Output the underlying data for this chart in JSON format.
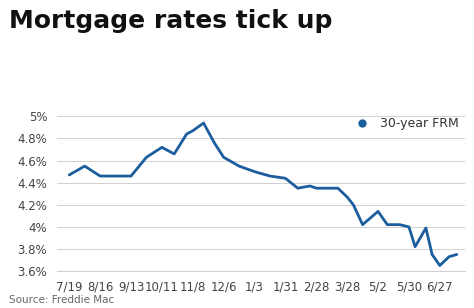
{
  "title": "Mortgage rates tick up",
  "legend_label": "30-year FRM",
  "source_text": "Source: Freddie Mac",
  "x_labels": [
    "7/19",
    "8/16",
    "9/13",
    "10/11",
    "11/8",
    "12/6",
    "1/3",
    "1/31",
    "2/28",
    "3/28",
    "5/2",
    "5/30",
    "6/27"
  ],
  "line_color": "#1c5d9e",
  "line_width": 2.0,
  "marker_color": "#1c5d9e",
  "marker_size": 7,
  "background_color": "#ffffff",
  "grid_color": "#d0d0d0",
  "ylim": [
    3.6,
    5.05
  ],
  "yticks": [
    3.6,
    3.8,
    4.0,
    4.2,
    4.4,
    4.6,
    4.8,
    5.0
  ],
  "title_fontsize": 18,
  "axis_fontsize": 8.5,
  "source_fontsize": 7.5,
  "x_data": [
    0,
    0.5,
    1.0,
    1.5,
    2.0,
    2.5,
    3.0,
    3.4,
    3.8,
    4.0,
    4.35,
    4.7,
    5.0,
    5.5,
    6.0,
    6.5,
    7.0,
    7.4,
    7.8,
    8.0,
    8.3,
    8.7,
    9.0,
    9.2,
    9.5,
    10.0,
    10.3,
    10.7,
    11.0,
    11.2,
    11.55,
    11.75,
    12.0,
    12.3,
    12.55
  ],
  "y_data": [
    4.47,
    4.55,
    4.46,
    4.46,
    4.46,
    4.63,
    4.72,
    4.66,
    4.84,
    4.87,
    4.94,
    4.76,
    4.63,
    4.55,
    4.5,
    4.46,
    4.44,
    4.35,
    4.37,
    4.35,
    4.35,
    4.35,
    4.27,
    4.2,
    4.02,
    4.14,
    4.02,
    4.02,
    4.0,
    3.82,
    3.99,
    3.75,
    3.65,
    3.73,
    3.75
  ]
}
